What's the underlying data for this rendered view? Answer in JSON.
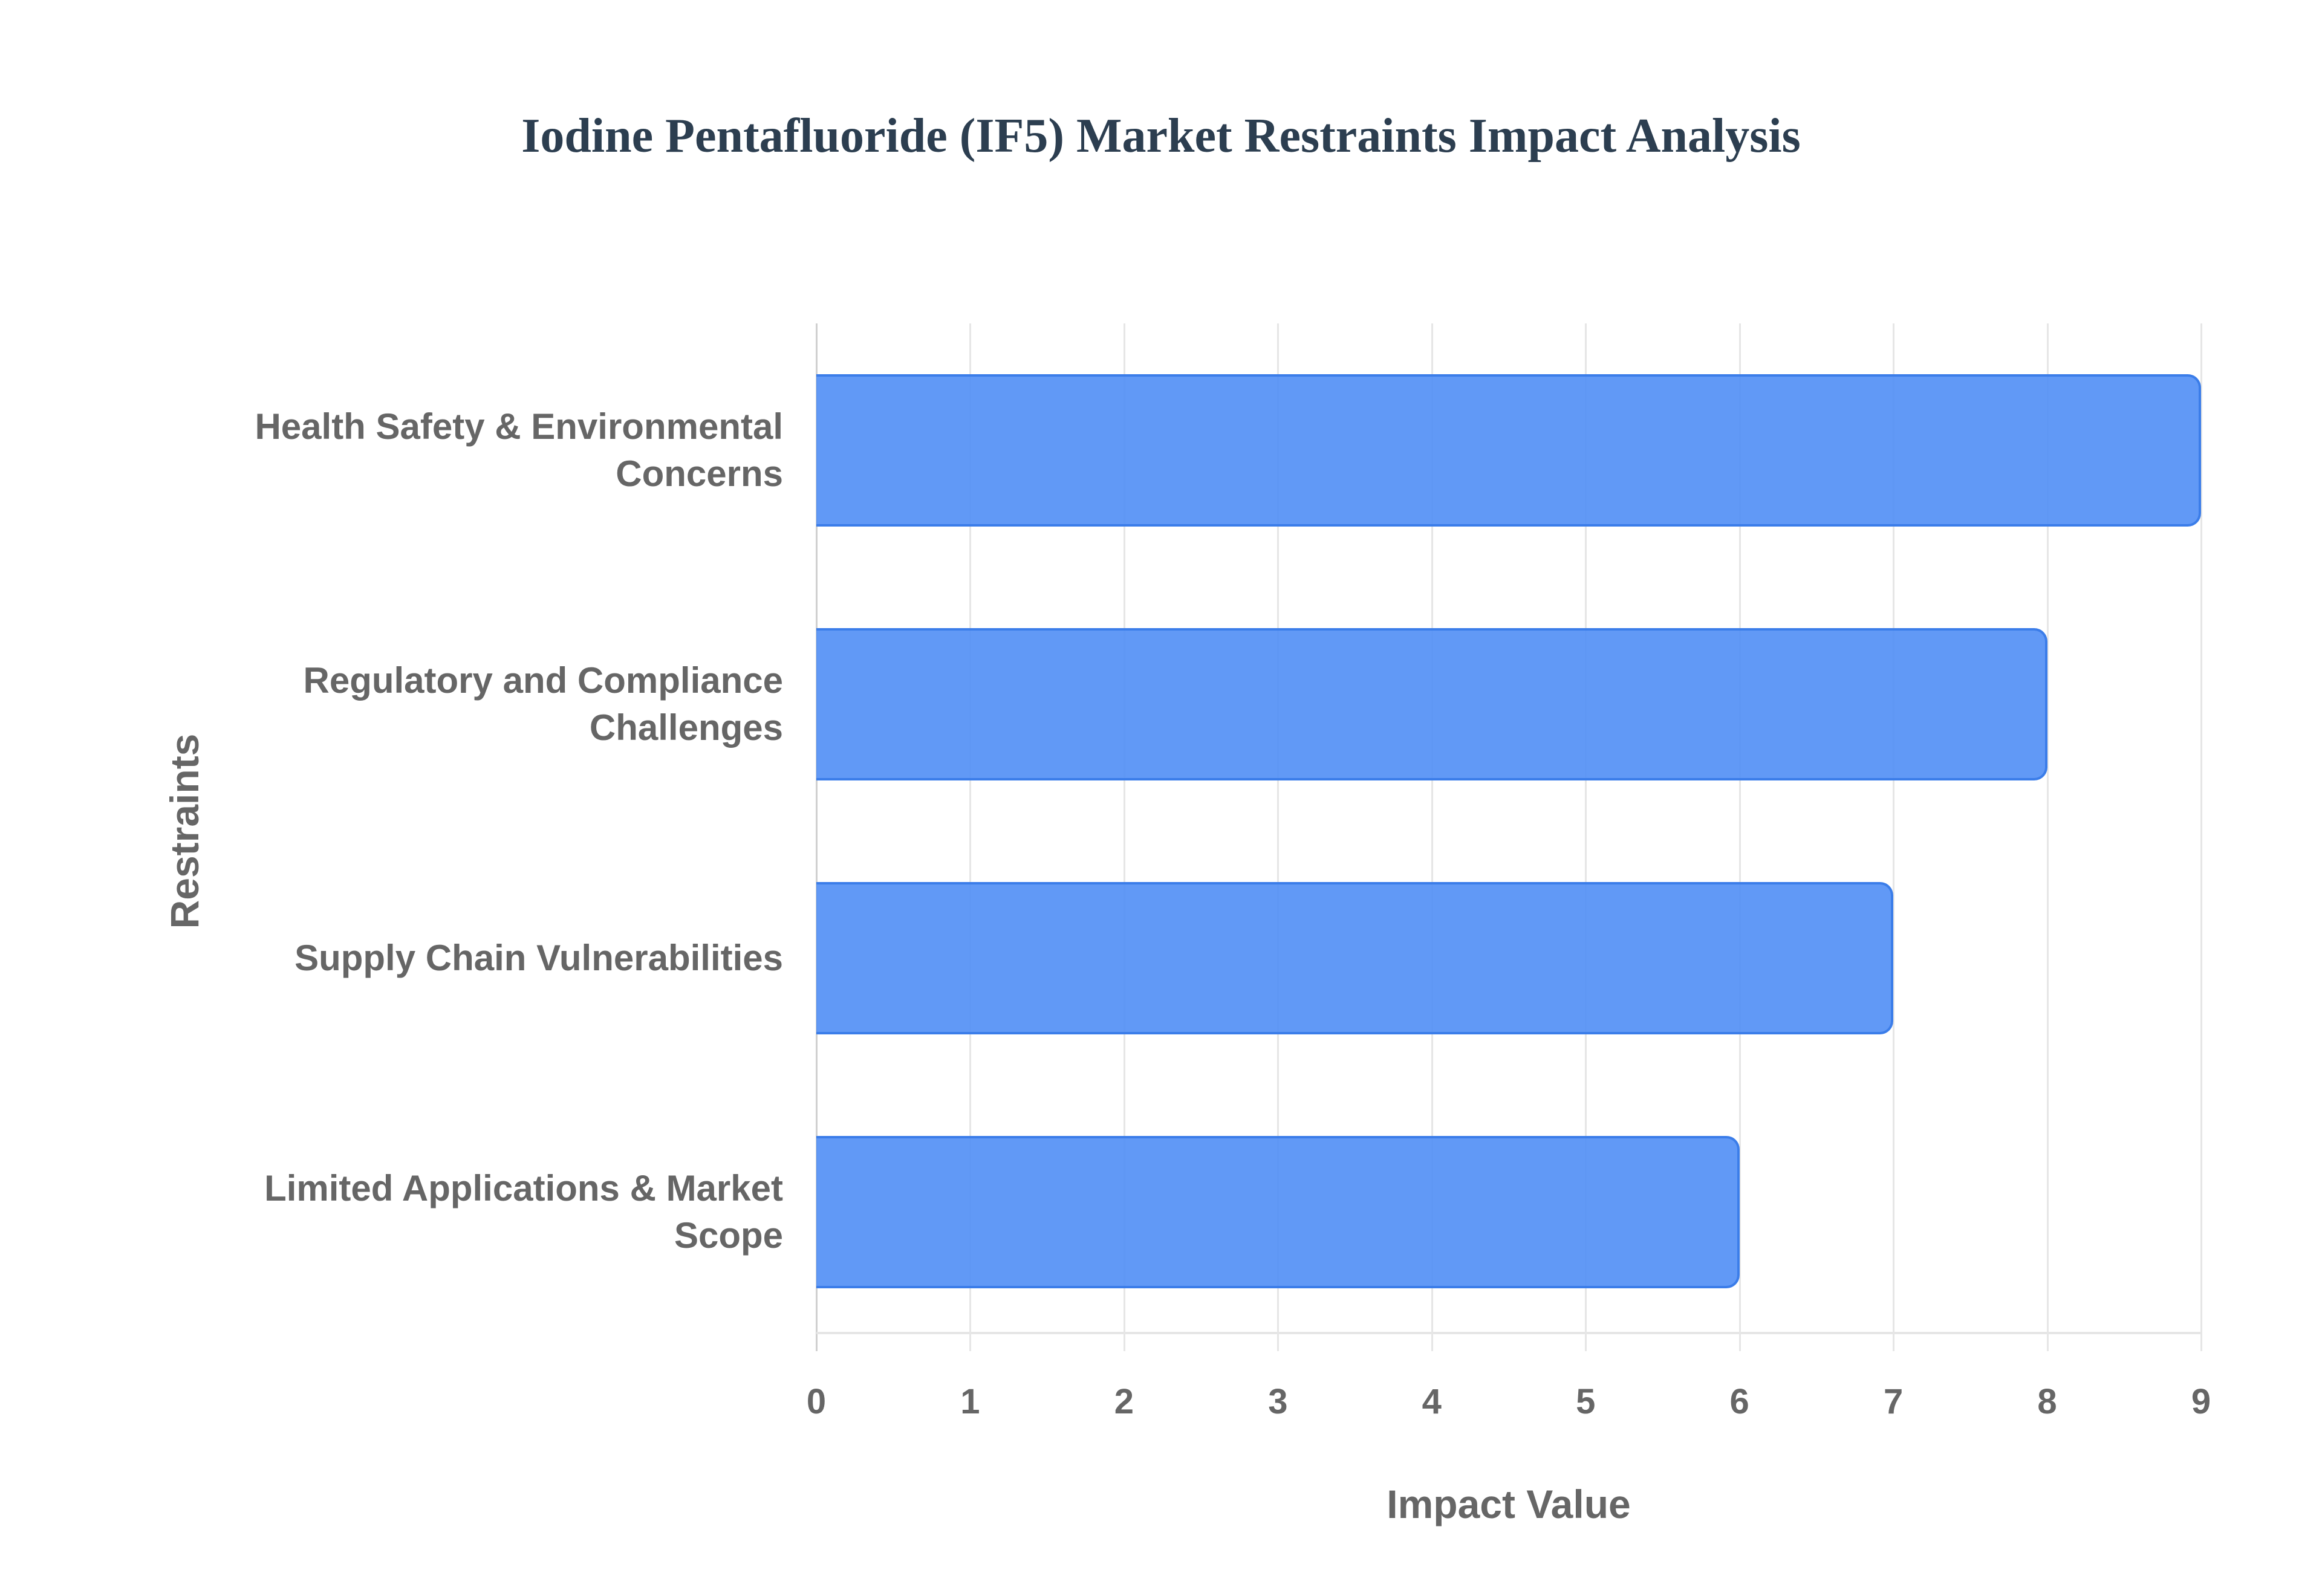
{
  "title": "Iodine Pentafluoride (IF5) Market Restraints Impact Analysis",
  "colors": {
    "bar_fill": "#5a96f5",
    "bar_border": "#3b7de9",
    "title": "#2c3e50",
    "axis_text": "#666666",
    "grid": "#e6e6e6"
  },
  "chart_data": {
    "type": "bar",
    "orientation": "horizontal",
    "title": "Iodine Pentafluoride (IF5) Market Restraints Impact Analysis",
    "xlabel": "Impact Value",
    "ylabel": "Restraints",
    "categories": [
      "Health Safety & Environmental Concerns",
      "Regulatory and Compliance Challenges",
      "Supply Chain Vulnerabilities",
      "Limited Applications & Market Scope"
    ],
    "values": [
      9,
      8,
      7,
      6
    ],
    "xlim": [
      0,
      9
    ],
    "xticks": [
      "0",
      "1",
      "2",
      "3",
      "4",
      "5",
      "6",
      "7",
      "8",
      "9"
    ],
    "grid": true,
    "legend": null
  },
  "ylabels": [
    [
      "Health Safety & Environmental",
      "Concerns"
    ],
    [
      "Regulatory and Compliance",
      "Challenges"
    ],
    [
      "Supply Chain Vulnerabilities"
    ],
    [
      "Limited Applications & Market",
      "Scope"
    ]
  ]
}
